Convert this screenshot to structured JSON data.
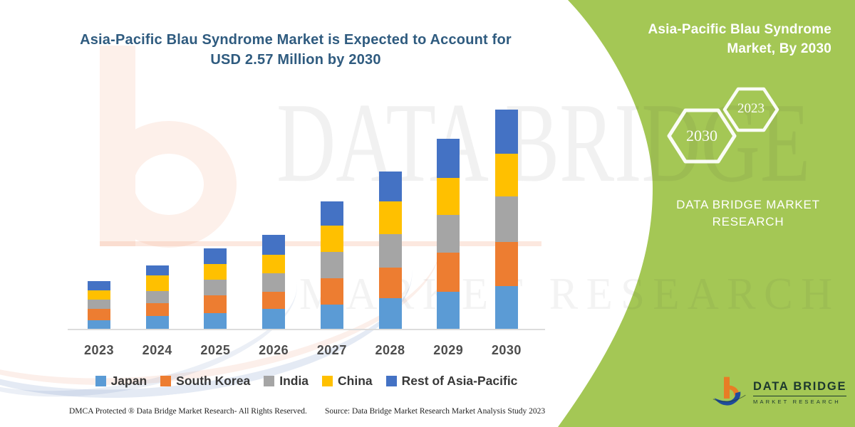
{
  "title": {
    "line1": "Asia-Pacific Blau Syndrome Market is Expected to Account for",
    "line2": "USD 2.57 Million by 2030"
  },
  "right_panel": {
    "panel_color": "#a4c755",
    "header_line1": "Asia-Pacific Blau Syndrome",
    "header_line2": "Market, By 2030",
    "hexagon_big_label": "2030",
    "hexagon_small_label": "2023",
    "brand_line1": "DATA BRIDGE MARKET",
    "brand_line2": "RESEARCH"
  },
  "watermark": {
    "line1": "DATA BRIDGE",
    "line2": "MARKET RESEARCH"
  },
  "logo": {
    "name": "DATA BRIDGE",
    "subtext": "MARKET RESEARCH"
  },
  "footer": {
    "dmca": "DMCA Protected ® Data Bridge Market Research-  All Rights Reserved.",
    "source": "Source: Data Bridge Market Research  Market Analysis Study 2023"
  },
  "chart_data": {
    "type": "bar",
    "stacked": true,
    "unit": "USD Million",
    "title": "Asia-Pacific Blau Syndrome Market",
    "xlabel": "",
    "ylabel": "",
    "grid": false,
    "legend_position": "bottom",
    "categories": [
      "2023",
      "2024",
      "2025",
      "2026",
      "2027",
      "2028",
      "2029",
      "2030"
    ],
    "series": [
      {
        "name": "Japan",
        "color": "#5B9BD5",
        "values": [
          0.1,
          0.15,
          0.18,
          0.23,
          0.28,
          0.36,
          0.43,
          0.5
        ]
      },
      {
        "name": "South Korea",
        "color": "#ED7D31",
        "values": [
          0.13,
          0.15,
          0.21,
          0.2,
          0.31,
          0.36,
          0.46,
          0.52
        ]
      },
      {
        "name": "India",
        "color": "#A5A5A5",
        "values": [
          0.11,
          0.14,
          0.18,
          0.22,
          0.31,
          0.39,
          0.44,
          0.53
        ]
      },
      {
        "name": "China",
        "color": "#FFC000",
        "values": [
          0.11,
          0.18,
          0.18,
          0.22,
          0.31,
          0.38,
          0.43,
          0.5
        ]
      },
      {
        "name": "Rest of Asia-Pacific",
        "color": "#4472C4",
        "values": [
          0.11,
          0.12,
          0.18,
          0.23,
          0.28,
          0.35,
          0.46,
          0.52
        ]
      }
    ],
    "totals": [
      0.56,
      0.74,
      0.93,
      1.1,
      1.49,
      1.84,
      2.22,
      2.57
    ],
    "highlight_total_2030": "USD 2.57 Million"
  }
}
